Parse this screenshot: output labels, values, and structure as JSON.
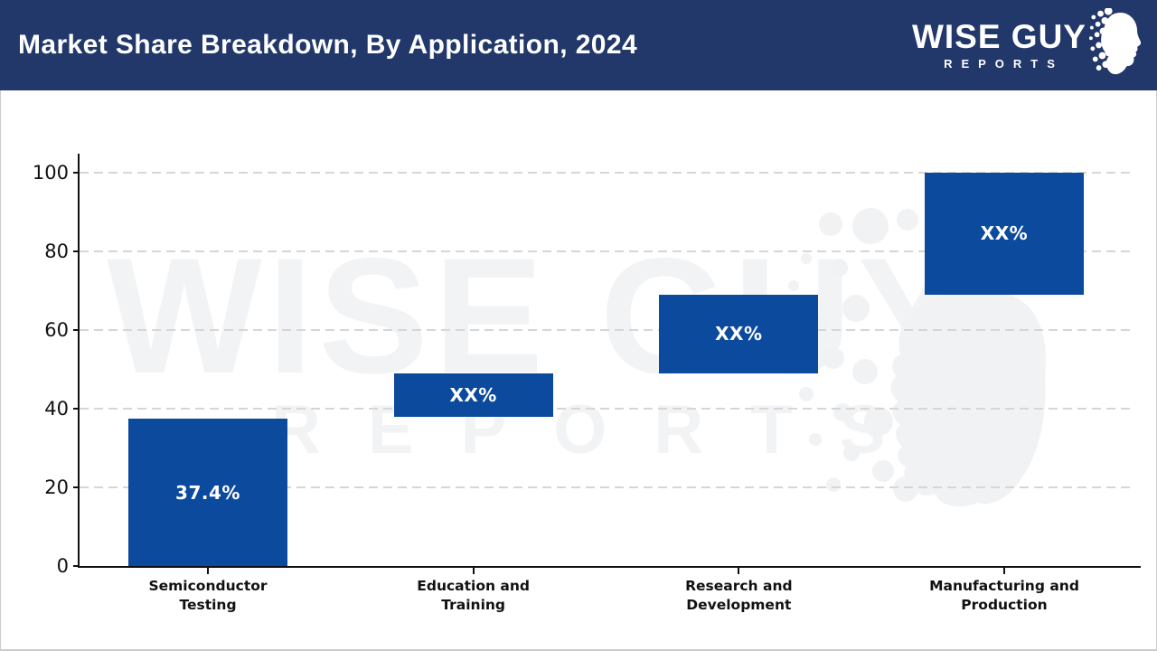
{
  "header": {
    "title": "Market Share Breakdown, By Application, 2024",
    "logo": {
      "line1": "WISE GUY",
      "line2": "REPORTS"
    }
  },
  "watermark": {
    "line1": "WISE GUY",
    "line2": "REPORTS"
  },
  "colors": {
    "header_bg": "#22386a",
    "bar_blue": "#0c4a9e",
    "grid": "#d6d6d6",
    "axis": "#111111",
    "watermark": "#f2f3f5"
  },
  "chart_data": {
    "type": "bar",
    "subtype": "waterfall",
    "title": "Market Share Breakdown, By Application, 2024",
    "categories": [
      "Semiconductor Testing",
      "Education and Training",
      "Research and Development",
      "Manufacturing and Production"
    ],
    "category_lines": [
      [
        "Semiconductor",
        "Testing"
      ],
      [
        "Education and",
        "Training"
      ],
      [
        "Research and",
        "Development"
      ],
      [
        "Manufacturing and",
        "Production"
      ]
    ],
    "bars": [
      {
        "start": 0,
        "end": 37.4,
        "label": "37.4%"
      },
      {
        "start": 38,
        "end": 49,
        "label": "XX%"
      },
      {
        "start": 49,
        "end": 69,
        "label": "XX%"
      },
      {
        "start": 69,
        "end": 100,
        "label": "XX%"
      }
    ],
    "ylim": [
      0,
      100
    ],
    "yticks": [
      0,
      20,
      40,
      60,
      80,
      100
    ],
    "xlabel": "",
    "ylabel": "",
    "grid": "dashed-horizontal",
    "legend": "none",
    "bar_color": "#0c4a9e",
    "value_label_color": "#ffffff"
  }
}
